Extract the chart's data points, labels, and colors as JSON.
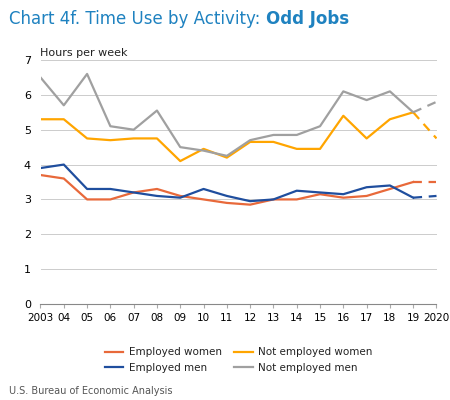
{
  "title_regular": "Chart 4f. Time Use by Activity: ",
  "title_bold": "Odd Jobs",
  "ylabel": "Hours per week",
  "source": "U.S. Bureau of Economic Analysis",
  "years": [
    2003,
    2004,
    2005,
    2006,
    2007,
    2008,
    2009,
    2010,
    2011,
    2012,
    2013,
    2014,
    2015,
    2016,
    2017,
    2018,
    2019,
    2020
  ],
  "employed_women": [
    3.7,
    3.6,
    3.0,
    3.0,
    3.2,
    3.3,
    3.1,
    3.0,
    2.9,
    2.85,
    3.0,
    3.0,
    3.15,
    3.05,
    3.1,
    3.3,
    3.5,
    3.5
  ],
  "employed_men": [
    3.9,
    4.0,
    3.3,
    3.3,
    3.2,
    3.1,
    3.05,
    3.3,
    3.1,
    2.95,
    3.0,
    3.25,
    3.2,
    3.15,
    3.35,
    3.4,
    3.05,
    3.1
  ],
  "not_employed_women": [
    5.3,
    5.3,
    4.75,
    4.7,
    4.75,
    4.75,
    4.1,
    4.45,
    4.2,
    4.65,
    4.65,
    4.45,
    4.45,
    5.4,
    4.75,
    5.3,
    5.5,
    4.75
  ],
  "not_employed_men": [
    6.5,
    5.7,
    6.6,
    5.1,
    5.0,
    5.55,
    4.5,
    4.4,
    4.25,
    4.7,
    4.85,
    4.85,
    5.1,
    6.1,
    5.85,
    6.1,
    5.5,
    5.8
  ],
  "color_emp_women": "#E8693A",
  "color_emp_men": "#1F4E9E",
  "color_not_emp_women": "#FFA500",
  "color_not_emp_men": "#A0A0A0",
  "ylim": [
    0,
    7
  ],
  "yticks": [
    0,
    1,
    2,
    3,
    4,
    5,
    6,
    7
  ],
  "bg_color": "#FFFFFF",
  "title_color": "#1F82C0",
  "xtick_labels": [
    "2003",
    "04",
    "05",
    "06",
    "07",
    "08",
    "09",
    "10",
    "11",
    "12",
    "13",
    "14",
    "15",
    "16",
    "17",
    "18",
    "19",
    "2020"
  ]
}
